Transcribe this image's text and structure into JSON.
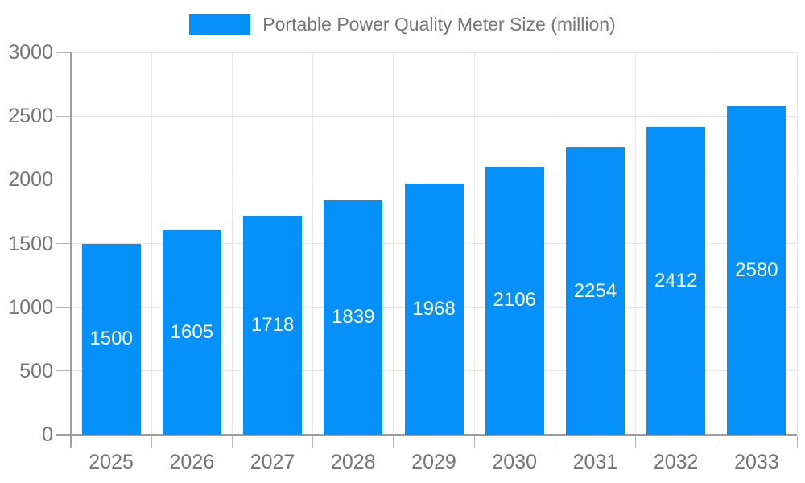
{
  "legend": {
    "label": "Portable Power Quality Meter Size (million)"
  },
  "chart_data": {
    "type": "bar",
    "title": "Portable Power Quality Meter Size (million)",
    "categories": [
      "2025",
      "2026",
      "2027",
      "2028",
      "2029",
      "2030",
      "2031",
      "2032",
      "2033"
    ],
    "values": [
      1500,
      1605,
      1718,
      1839,
      1968,
      2106,
      2254,
      2412,
      2580
    ],
    "xlabel": "",
    "ylabel": "",
    "ylim": [
      0,
      3000
    ],
    "yticks": [
      0,
      500,
      1000,
      1500,
      2000,
      2500,
      3000
    ],
    "grid": true,
    "legend_position": "top",
    "bar_color": "#0590fa",
    "value_label_color": "#ffffff"
  },
  "colors": {
    "bar": "#0590fa",
    "grid": "#e6e6e6",
    "axis": "#9e9e9e",
    "tick": "#b5b5b5",
    "text": "#757575",
    "background": "#ffffff"
  }
}
